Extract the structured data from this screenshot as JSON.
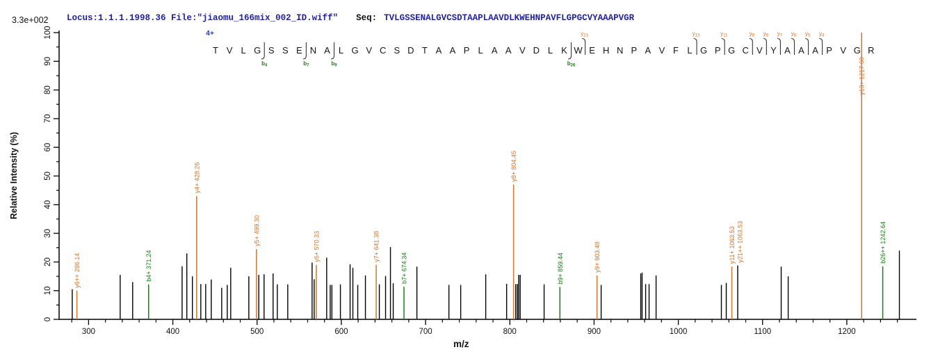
{
  "header": {
    "locus_file": "Locus:1.1.1.1998.36 File:\"jiaomu_166mix_002_ID.wiff\"",
    "seq_prefix": "Seq:",
    "sequence": "TVLGSSENALGVCSDTAAPLAAVDLKWEHNPAVFLGPGCVYAAAPVGR"
  },
  "chart_data": {
    "type": "bar",
    "subtype": "ms2-centroid-mass-spectrum",
    "base_peak_intensity": "3.3e+002",
    "xlabel": "m/z",
    "ylabel": "Relative  Intensity (%)",
    "x_axis": {
      "min": 265,
      "max": 1276,
      "major_ticks": [
        300,
        400,
        500,
        600,
        700,
        800,
        900,
        1000,
        1100,
        1200
      ],
      "minor_step": 20
    },
    "y_axis": {
      "min": 0,
      "max": 100,
      "major_step": 10,
      "minor_step": 5
    },
    "legend": "none",
    "grid": false,
    "colors": {
      "peak": "#000000",
      "y_ion": "#d4732a",
      "b_ion": "#168016",
      "header_text": "#23239f",
      "precursor": "#2040d0",
      "axis": "#000000"
    },
    "precursor_charge": "4+",
    "peptide": {
      "sequence": "TVLGSSENALGVCSDTAAPLAAVDLKWEHNPAVFLGPGCVYAAAPVGR",
      "b_fragments": [
        {
          "after": 4,
          "n": "4"
        },
        {
          "after": 7,
          "n": "7"
        },
        {
          "after": 9,
          "n": "9"
        },
        {
          "after": 26,
          "n": "26"
        }
      ],
      "y_fragments": [
        {
          "after": 27,
          "n": "21"
        },
        {
          "after": 35,
          "n": "13"
        },
        {
          "after": 37,
          "n": "11"
        },
        {
          "after": 39,
          "n": "9"
        },
        {
          "after": 40,
          "n": "8"
        },
        {
          "after": 41,
          "n": "7"
        },
        {
          "after": 42,
          "n": "6"
        },
        {
          "after": 43,
          "n": "5"
        },
        {
          "after": 44,
          "n": "4"
        }
      ]
    },
    "assigned_peaks": [
      {
        "ion": "y6++",
        "mz": 286.14,
        "intensity": 10.0,
        "series": "y",
        "label": "y6++ 286.14"
      },
      {
        "ion": "b4+",
        "mz": 371.24,
        "intensity": 12.2,
        "series": "b",
        "label": "b4+ 371.24"
      },
      {
        "ion": "y4+",
        "mz": 428.26,
        "intensity": 43.0,
        "series": "y",
        "label": "y4+ 428.26"
      },
      {
        "ion": "y5+",
        "mz": 499.3,
        "intensity": 24.5,
        "series": "y",
        "label": "y5+ 499.30"
      },
      {
        "ion": "y6+",
        "mz": 570.33,
        "intensity": 19.0,
        "series": "y",
        "label": "y6+ 570.33"
      },
      {
        "ion": "y7+",
        "mz": 641.38,
        "intensity": 19.0,
        "series": "y",
        "label": "y7+ 641.38"
      },
      {
        "ion": "b7+",
        "mz": 674.34,
        "intensity": 11.4,
        "series": "b",
        "label": "b7+ 674.34"
      },
      {
        "ion": "y8+",
        "mz": 804.45,
        "intensity": 47.0,
        "series": "y",
        "label": "y8+ 804.45"
      },
      {
        "ion": "b9+",
        "mz": 859.44,
        "intensity": 11.3,
        "series": "b",
        "label": "b9+ 859.44"
      },
      {
        "ion": "y9+",
        "mz": 903.48,
        "intensity": 15.3,
        "series": "y",
        "label": "y9+ 903.48"
      },
      {
        "ion": "y11+",
        "mz": 1063.53,
        "intensity": 18.4,
        "series": "y",
        "label": "y11+ 1063.53"
      },
      {
        "ion": "y21++",
        "mz": 1063.53,
        "intensity": 18.8,
        "series": "y",
        "label": "y21++ 1063.53",
        "label_at_mz": 1073,
        "no_line": true
      },
      {
        "ion": "y13+",
        "mz": 1217.6,
        "intensity": 100.0,
        "series": "y",
        "label": "y13+ 1217.60",
        "label_anchor_y": 137
      },
      {
        "ion": "b26++",
        "mz": 1242.64,
        "intensity": 18.5,
        "series": "b",
        "label": "b26++ 1242.64"
      }
    ],
    "unassigned_peaks": [
      [
        280.6,
        10.5
      ],
      [
        337.5,
        15.5
      ],
      [
        352.3,
        13
      ],
      [
        411,
        18.5
      ],
      [
        416.6,
        23
      ],
      [
        423.2,
        15
      ],
      [
        433.2,
        12.3
      ],
      [
        439,
        12.3
      ],
      [
        445.6,
        13.9
      ],
      [
        458,
        11
      ],
      [
        464.6,
        12
      ],
      [
        468.7,
        18
      ],
      [
        490.2,
        15
      ],
      [
        502,
        15.5
      ],
      [
        508.3,
        15.7
      ],
      [
        519,
        16
      ],
      [
        524,
        12.2
      ],
      [
        536.4,
        12.2
      ],
      [
        565.3,
        19.8
      ],
      [
        567.8,
        14
      ],
      [
        582.6,
        21.5
      ],
      [
        586.8,
        12
      ],
      [
        588.8,
        12
      ],
      [
        598.9,
        12.2
      ],
      [
        610.4,
        19.2
      ],
      [
        613.7,
        18
      ],
      [
        619.5,
        12
      ],
      [
        628.6,
        15.3
      ],
      [
        645.1,
        12.2
      ],
      [
        652.5,
        15.1
      ],
      [
        658.3,
        25.2
      ],
      [
        661.6,
        12.6
      ],
      [
        689.7,
        18.4
      ],
      [
        727.7,
        12
      ],
      [
        741.7,
        12
      ],
      [
        771.4,
        15.7
      ],
      [
        796.2,
        12.4
      ],
      [
        807,
        12.3
      ],
      [
        809,
        12.3
      ],
      [
        810.5,
        15.5
      ],
      [
        812.3,
        15.5
      ],
      [
        840.7,
        12.2
      ],
      [
        908.4,
        12
      ],
      [
        955.4,
        16
      ],
      [
        957,
        16.3
      ],
      [
        961.2,
        12.3
      ],
      [
        965.3,
        12.3
      ],
      [
        973.6,
        15.3
      ],
      [
        1051.1,
        12
      ],
      [
        1056.9,
        12.7
      ],
      [
        1070.5,
        18.8
      ],
      [
        1122.1,
        18.4
      ],
      [
        1130.4,
        15
      ],
      [
        1262.4,
        24
      ]
    ]
  }
}
